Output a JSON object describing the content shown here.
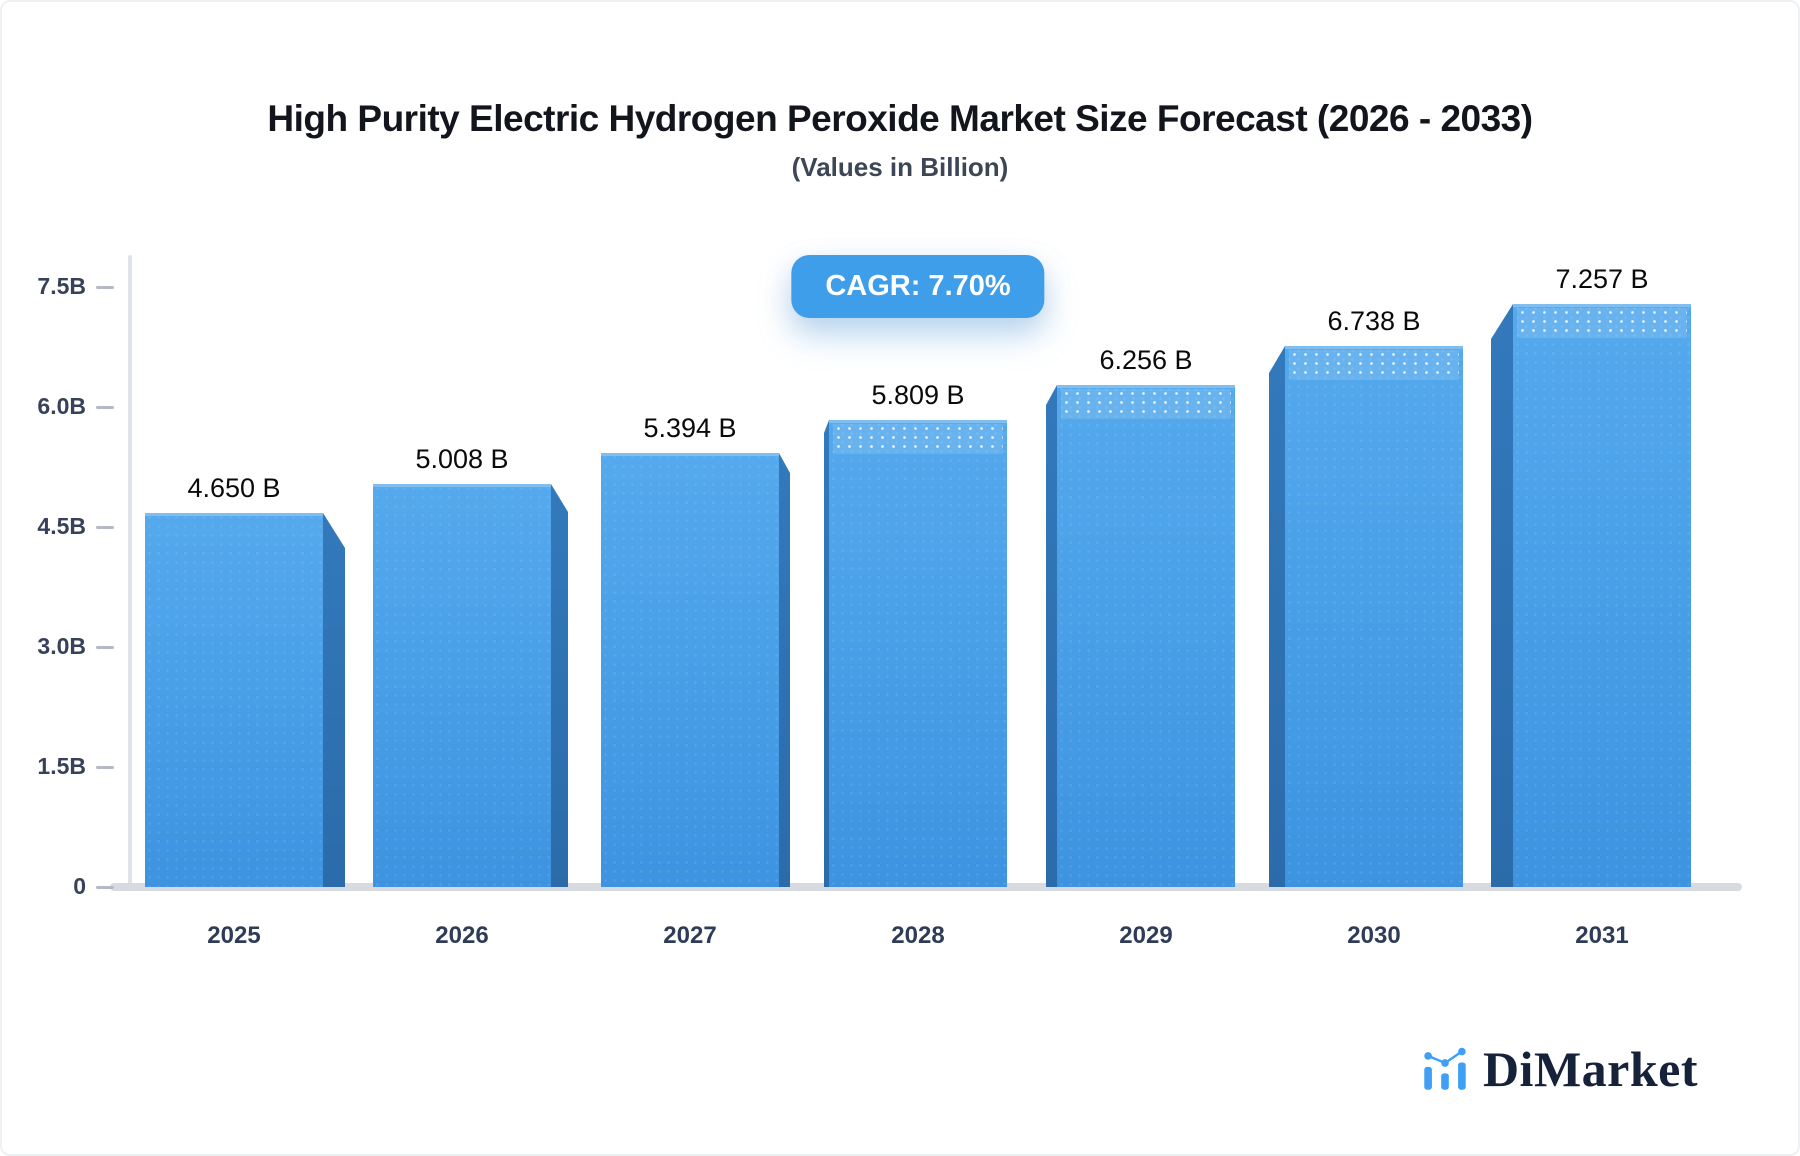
{
  "header": {
    "title": "High Purity Electric Hydrogen Peroxide Market Size Forecast (2026 - 2033)",
    "subtitle": "(Values in Billion)"
  },
  "cagr_badge": {
    "label": "CAGR: 7.70%"
  },
  "chart_data": {
    "type": "bar",
    "title": "High Purity Electric Hydrogen Peroxide Market Size Forecast (2026 - 2033)",
    "subtitle": "(Values in Billion)",
    "annotation": "CAGR: 7.70%",
    "categories": [
      "2025",
      "2026",
      "2027",
      "2028",
      "2029",
      "2030",
      "2031"
    ],
    "values": [
      4.65,
      5.008,
      5.394,
      5.809,
      6.256,
      6.738,
      7.257
    ],
    "value_labels": [
      "4.650 B",
      "5.008 B",
      "5.394 B",
      "5.809 B",
      "6.256 B",
      "6.738 B",
      "7.257 B"
    ],
    "unit": "B",
    "ylim": [
      0,
      7.5
    ],
    "yticks": [
      {
        "value": 0,
        "label": "0"
      },
      {
        "value": 1.5,
        "label": "1.5B"
      },
      {
        "value": 3.0,
        "label": "3.0B"
      },
      {
        "value": 4.5,
        "label": "4.5B"
      },
      {
        "value": 6.0,
        "label": "6.0B"
      },
      {
        "value": 7.5,
        "label": "7.5B"
      }
    ],
    "grid": false,
    "legend": "none",
    "bar_style": {
      "fill_top": "#55a9ed",
      "fill_bottom": "#3e93e0",
      "side_fill": "#2e72b3",
      "side_direction": [
        "right",
        "right",
        "right",
        "left",
        "left",
        "left",
        "left"
      ],
      "side_widths": [
        22,
        17,
        11,
        5,
        11,
        16,
        22
      ],
      "dotted_band": [
        false,
        false,
        false,
        true,
        true,
        true,
        true
      ]
    },
    "colors": {
      "accent_blue": "#3f9eea",
      "axis_text": "#2f3c58",
      "value_text": "#0a0a0a",
      "baseline_gray": "#d7dbe1"
    }
  },
  "footer": {
    "brand": "DiMarket",
    "logo_icon": "bar-chart-logo-icon",
    "logo_color": "#3f9ff4"
  }
}
